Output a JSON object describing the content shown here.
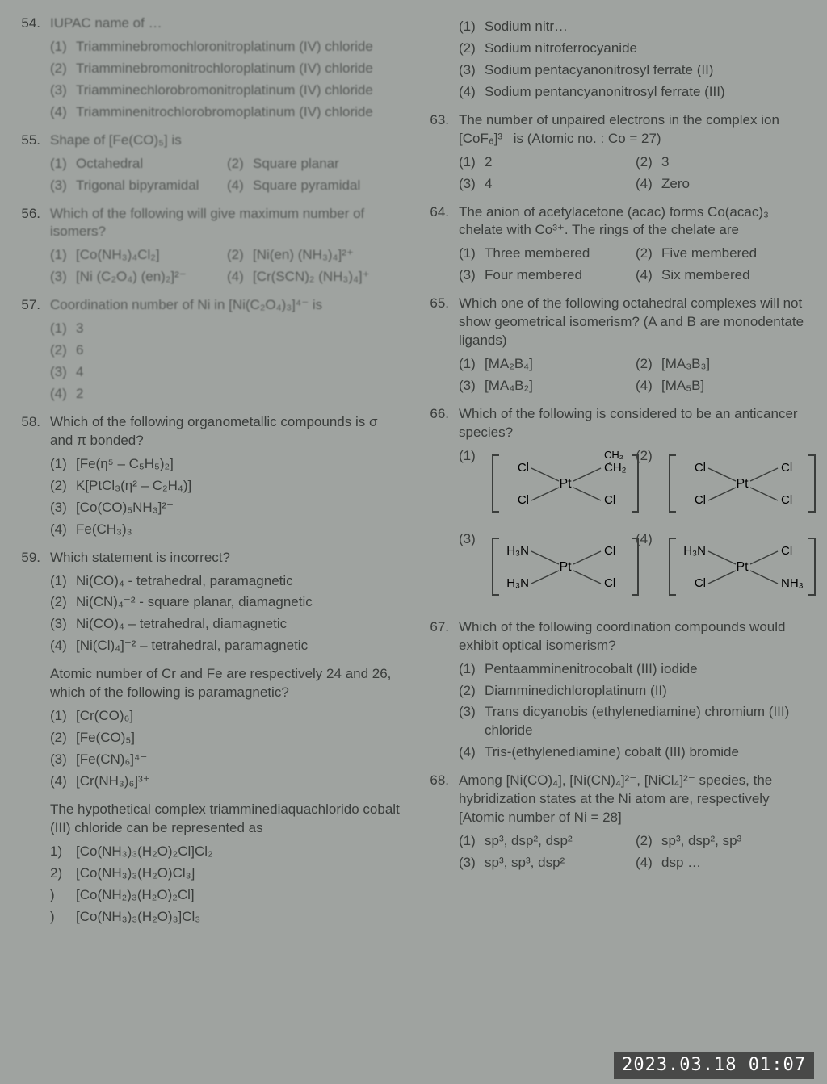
{
  "timestamp": "2023.03.18 01:07",
  "left": [
    {
      "num": "54.",
      "stem": "IUPAC name of …",
      "opts": [
        {
          "n": "(1)",
          "t": "Triamminebromochloronitroplatinum (IV) chloride",
          "w": "full"
        },
        {
          "n": "(2)",
          "t": "Triamminebromonitrochloroplatinum (IV) chloride",
          "w": "full"
        },
        {
          "n": "(3)",
          "t": "Triamminechlorobromonitroplatinum (IV) chloride",
          "w": "full"
        },
        {
          "n": "(4)",
          "t": "Triamminenitrochlorobromoplatinum (IV) chloride",
          "w": "full"
        }
      ]
    },
    {
      "num": "55.",
      "stem": "Shape of [Fe(CO)₅] is",
      "opts": [
        {
          "n": "(1)",
          "t": "Octahedral",
          "w": "half"
        },
        {
          "n": "(2)",
          "t": "Square planar",
          "w": "half"
        },
        {
          "n": "(3)",
          "t": "Trigonal bipyramidal",
          "w": "half"
        },
        {
          "n": "(4)",
          "t": "Square pyramidal",
          "w": "half"
        }
      ]
    },
    {
      "num": "56.",
      "stem": "Which of the following will give maximum number of isomers?",
      "opts": [
        {
          "n": "(1)",
          "t": "[Co(NH₃)₄Cl₂]",
          "w": "half"
        },
        {
          "n": "(2)",
          "t": "[Ni(en) (NH₃)₄]²⁺",
          "w": "half"
        },
        {
          "n": "(3)",
          "t": "[Ni (C₂O₄) (en)₂]²⁻",
          "w": "half"
        },
        {
          "n": "(4)",
          "t": "[Cr(SCN)₂ (NH₃)₄]⁺",
          "w": "half"
        }
      ]
    },
    {
      "num": "57.",
      "stem": "Coordination number of Ni in [Ni(C₂O₄)₃]⁴⁻ is",
      "opts": [
        {
          "n": "(1)",
          "t": "3",
          "w": "full"
        },
        {
          "n": "(2)",
          "t": "6",
          "w": "full"
        },
        {
          "n": "(3)",
          "t": "4",
          "w": "full"
        },
        {
          "n": "(4)",
          "t": "2",
          "w": "full"
        }
      ]
    },
    {
      "num": "58.",
      "stem": "Which of the following organometallic compounds is σ and π bonded?",
      "opts": [
        {
          "n": "(1)",
          "t": "[Fe(η⁵ – C₅H₅)₂]",
          "w": "full"
        },
        {
          "n": "(2)",
          "t": "K[PtCl₃(η² – C₂H₄)]",
          "w": "full"
        },
        {
          "n": "(3)",
          "t": "[Co(CO)₅NH₃]²⁺",
          "w": "full"
        },
        {
          "n": "(4)",
          "t": "Fe(CH₃)₃",
          "w": "full"
        }
      ]
    },
    {
      "num": "59.",
      "stem": "Which statement is incorrect?",
      "opts": [
        {
          "n": "(1)",
          "t": "Ni(CO)₄ - tetrahedral, paramagnetic",
          "w": "full"
        },
        {
          "n": "(2)",
          "t": "Ni(CN)₄⁻² - square planar, diamagnetic",
          "w": "full"
        },
        {
          "n": "(3)",
          "t": "Ni(CO)₄ – tetrahedral, diamagnetic",
          "w": "full"
        },
        {
          "n": "(4)",
          "t": "[Ni(Cl)₄]⁻² – tetrahedral, paramagnetic",
          "w": "full"
        }
      ]
    },
    {
      "num": "",
      "stem": "Atomic number of Cr and Fe are respectively 24 and 26, which of the following is paramagnetic?",
      "opts": [
        {
          "n": "(1)",
          "t": "[Cr(CO)₆]",
          "w": "full"
        },
        {
          "n": "(2)",
          "t": "[Fe(CO)₅]",
          "w": "full"
        },
        {
          "n": "(3)",
          "t": "[Fe(CN)₆]⁴⁻",
          "w": "full"
        },
        {
          "n": "(4)",
          "t": "[Cr(NH₃)₆]³⁺",
          "w": "full"
        }
      ]
    },
    {
      "num": "",
      "stem": "The hypothetical complex triamminediaquachlorido cobalt (III) chloride can be represented as",
      "opts": [
        {
          "n": "1)",
          "t": "[Co(NH₃)₃(H₂O)₂Cl]Cl₂",
          "w": "full"
        },
        {
          "n": "2)",
          "t": "[Co(NH₃)₃(H₂O)Cl₃]",
          "w": "full"
        },
        {
          "n": ")",
          "t": "[Co(NH₂)₃(H₂O)₂Cl]",
          "w": "full"
        },
        {
          "n": ")",
          "t": "[Co(NH₃)₃(H₂O)₃]Cl₃",
          "w": "full"
        }
      ]
    }
  ],
  "right": [
    {
      "num": "",
      "stem": "",
      "opts": [
        {
          "n": "(1)",
          "t": "Sodium nitr…",
          "w": "full"
        },
        {
          "n": "(2)",
          "t": "Sodium nitroferrocyanide",
          "w": "full"
        },
        {
          "n": "(3)",
          "t": "Sodium pentacyanonitrosyl ferrate (II)",
          "w": "full"
        },
        {
          "n": "(4)",
          "t": "Sodium pentancyanonitrosyl ferrate (III)",
          "w": "full"
        }
      ]
    },
    {
      "num": "63.",
      "stem": "The number of unpaired electrons in the complex ion [CoF₆]³⁻ is (Atomic no. : Co = 27)",
      "opts": [
        {
          "n": "(1)",
          "t": "2",
          "w": "half"
        },
        {
          "n": "(2)",
          "t": "3",
          "w": "half"
        },
        {
          "n": "(3)",
          "t": "4",
          "w": "half"
        },
        {
          "n": "(4)",
          "t": "Zero",
          "w": "half"
        }
      ]
    },
    {
      "num": "64.",
      "stem": "The anion of acetylacetone (acac) forms Co(acac)₃ chelate with Co³⁺. The rings of the chelate are",
      "opts": [
        {
          "n": "(1)",
          "t": "Three membered",
          "w": "half"
        },
        {
          "n": "(2)",
          "t": "Five membered",
          "w": "half"
        },
        {
          "n": "(3)",
          "t": "Four membered",
          "w": "half"
        },
        {
          "n": "(4)",
          "t": "Six membered",
          "w": "half"
        }
      ]
    },
    {
      "num": "65.",
      "stem": "Which one of the following octahedral complexes will not show geometrical isomerism? (A and B are monodentate ligands)",
      "opts": [
        {
          "n": "(1)",
          "t": "[MA₂B₄]",
          "w": "half"
        },
        {
          "n": "(2)",
          "t": "[MA₃B₃]",
          "w": "half"
        },
        {
          "n": "(3)",
          "t": "[MA₄B₂]",
          "w": "half"
        },
        {
          "n": "(4)",
          "t": "[MA₅B]",
          "w": "half"
        }
      ]
    },
    {
      "num": "66.",
      "stem": "Which of the following is considered to be an anticancer species?",
      "svgopts": true,
      "svg_labels": {
        "o1": "(1)",
        "o2": "(2)",
        "o3": "(3)",
        "o4": "(4)",
        "cl": "Cl",
        "pt": "Pt",
        "h3n": "H₃N",
        "nh3": "NH₃",
        "ch2a": "CH₂",
        "ch2b": "CH₂"
      }
    },
    {
      "num": "67.",
      "stem": "Which of the following coordination compounds would exhibit optical isomerism?",
      "opts": [
        {
          "n": "(1)",
          "t": "Pentaamminenitrocobalt (III) iodide",
          "w": "full"
        },
        {
          "n": "(2)",
          "t": "Diamminedichloroplatinum (II)",
          "w": "full"
        },
        {
          "n": "(3)",
          "t": "Trans dicyanobis (ethylenediamine) chromium (III) chloride",
          "w": "full"
        },
        {
          "n": "(4)",
          "t": "Tris-(ethylenediamine) cobalt (III) bromide",
          "w": "full"
        }
      ]
    },
    {
      "num": "68.",
      "stem": "Among [Ni(CO)₄], [Ni(CN)₄]²⁻, [NiCl₄]²⁻ species, the hybridization states at the Ni atom are, respectively [Atomic number of Ni = 28]",
      "opts": [
        {
          "n": "(1)",
          "t": "sp³, dsp², dsp²",
          "w": "half"
        },
        {
          "n": "(2)",
          "t": "sp³, dsp², sp³",
          "w": "half"
        },
        {
          "n": "(3)",
          "t": "sp³, sp³, dsp²",
          "w": "half"
        },
        {
          "n": "(4)",
          "t": "dsp …",
          "w": "half"
        }
      ]
    }
  ]
}
